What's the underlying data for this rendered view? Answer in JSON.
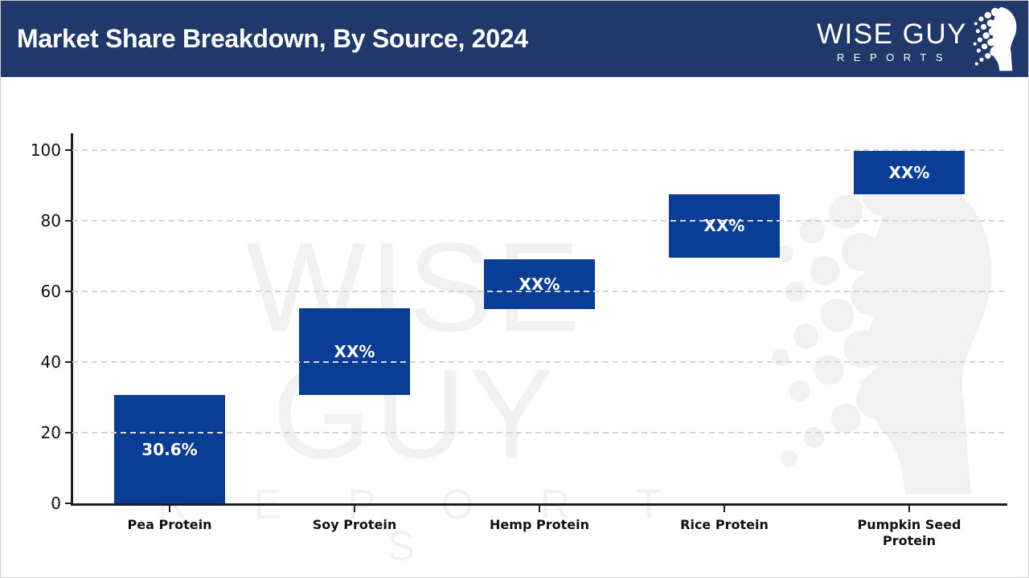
{
  "header": {
    "title": "Market Share Breakdown, By Source, 2024",
    "bg_color": "#20386a",
    "logo": {
      "line1": "WISE GUY",
      "line2": "REPORTS"
    }
  },
  "watermark": {
    "line1": "WISE GUY",
    "line2": "REPORTS"
  },
  "chart_data": {
    "type": "bar",
    "subtype": "waterfall",
    "title": "Market Share Breakdown, By Source, 2024",
    "categories": [
      "Pea Protein",
      "Soy Protein",
      "Hemp Protein",
      "Rice Protein",
      "Pumpkin Seed Protein"
    ],
    "segments": [
      {
        "category": "Pea Protein",
        "start": 0,
        "end": 30.6,
        "label": "30.6%"
      },
      {
        "category": "Soy Protein",
        "start": 30.6,
        "end": 55.2,
        "label": "XX%"
      },
      {
        "category": "Hemp Protein",
        "start": 55.1,
        "end": 69.1,
        "label": "XX%"
      },
      {
        "category": "Rice Protein",
        "start": 69.5,
        "end": 87.6,
        "label": "XX%"
      },
      {
        "category": "Pumpkin Seed Protein",
        "start": 87.6,
        "end": 99.8,
        "label": "XX%"
      }
    ],
    "yticks": [
      0,
      20,
      40,
      60,
      80,
      100
    ],
    "ylim": [
      0,
      105
    ],
    "xlabel": "",
    "ylabel": "",
    "legend": "none",
    "grid": true,
    "grid_style": "dashed",
    "grid_over_bars": true,
    "bar_color": "#0a3e96",
    "bar_label_color": "#ffffff",
    "axis_color": "#1f1f1f",
    "grid_color": "#d6d6d6",
    "watermark_color": "#f1f1f1"
  }
}
